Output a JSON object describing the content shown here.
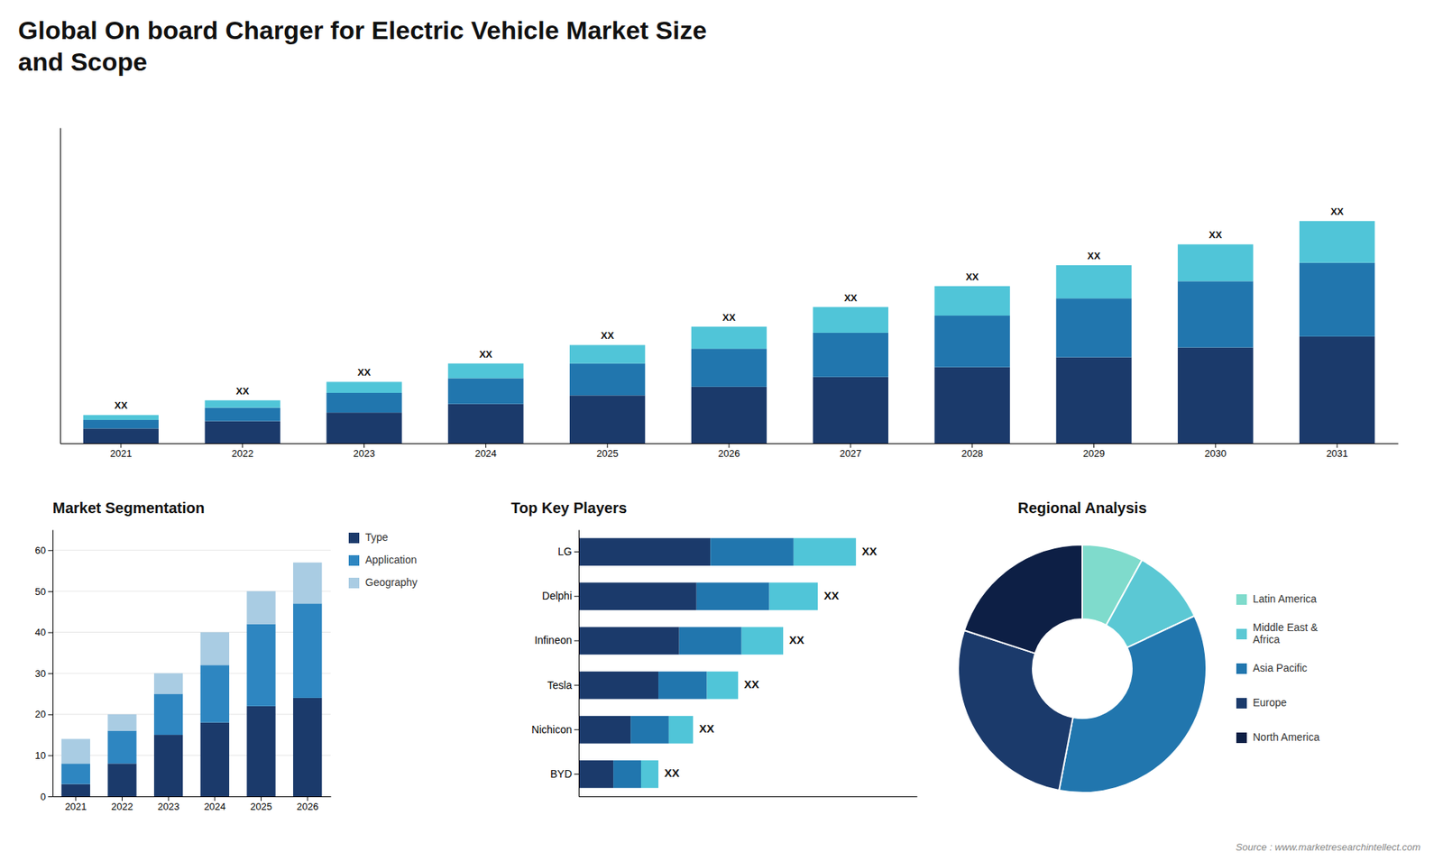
{
  "chart_data": [
    {
      "type": "bar",
      "title": "Global On board Charger for Electric Vehicle Market Size\nand Scope",
      "categories": [
        "2021",
        "2022",
        "2023",
        "2024",
        "2025",
        "2026",
        "2027",
        "2028",
        "2029",
        "2030",
        "2031"
      ],
      "series": [
        {
          "color": "#1b3a6b",
          "values": [
            1.2,
            1.8,
            2.5,
            3.2,
            3.9,
            4.6,
            5.4,
            6.2,
            7.0,
            7.8,
            8.7
          ]
        },
        {
          "color": "#2176ae",
          "values": [
            0.7,
            1.1,
            1.6,
            2.1,
            2.6,
            3.1,
            3.6,
            4.2,
            4.8,
            5.4,
            6.0
          ]
        },
        {
          "color": "#50c5d8",
          "values": [
            0.4,
            0.6,
            0.9,
            1.2,
            1.5,
            1.8,
            2.1,
            2.4,
            2.7,
            3.0,
            3.4
          ]
        }
      ],
      "stacked": true,
      "ylim": [
        0,
        25.702
      ],
      "tick_labels": "x",
      "grid": false,
      "annotations": [
        {
          "category": "2021",
          "text": "XX"
        },
        {
          "category": "2022",
          "text": "XX"
        },
        {
          "category": "2023",
          "text": "XX"
        },
        {
          "category": "2024",
          "text": "XX"
        },
        {
          "category": "2025",
          "text": "XX"
        },
        {
          "category": "2026",
          "text": "XX"
        },
        {
          "category": "2027",
          "text": "XX"
        },
        {
          "category": "2028",
          "text": "XX"
        },
        {
          "category": "2029",
          "text": "XX"
        },
        {
          "category": "2030",
          "text": "XX"
        },
        {
          "category": "2031",
          "text": "XX"
        },
        {
          "text": "Source : www.marketresearchintellect.com"
        }
      ]
    },
    {
      "type": "bar",
      "title": "Market Segmentation",
      "categories": [
        "2021",
        "2022",
        "2023",
        "2024",
        "2025",
        "2026"
      ],
      "series": [
        {
          "name": "Type",
          "color": "#1b3a6b",
          "values": [
            3,
            8,
            15,
            18,
            22,
            24
          ]
        },
        {
          "name": "Application",
          "color": "#2e86c1",
          "values": [
            5,
            8,
            10,
            14,
            20,
            23
          ]
        },
        {
          "name": "Geography",
          "color": "#a9cce3",
          "values": [
            6,
            4,
            5,
            8,
            8,
            10
          ]
        }
      ],
      "stacked": true,
      "ylim": [
        0,
        65
      ],
      "yticks": [
        0,
        10,
        20,
        30,
        40,
        50,
        60
      ],
      "grid": true,
      "legend": "right"
    },
    {
      "type": "bar",
      "orientation": "horizontal",
      "title": "Top Key Players",
      "categories": [
        "LG",
        "Delphi",
        "Infineon",
        "Tesla",
        "Nichicon",
        "BYD"
      ],
      "series": [
        {
          "color": "#1b3a6b",
          "values": [
            38,
            34,
            29,
            23,
            15,
            10
          ]
        },
        {
          "color": "#2176ae",
          "values": [
            24,
            21,
            18,
            14,
            11,
            8
          ]
        },
        {
          "color": "#50c5d8",
          "values": [
            18,
            14,
            12,
            9,
            7,
            5
          ]
        }
      ],
      "stacked": true,
      "xlim": [
        0,
        97.6
      ],
      "tick_labels": "y",
      "grid": false,
      "annotations": [
        {
          "category": "LG",
          "text": "XX"
        },
        {
          "category": "Delphi",
          "text": "XX"
        },
        {
          "category": "Infineon",
          "text": "XX"
        },
        {
          "category": "Tesla",
          "text": "XX"
        },
        {
          "category": "Nichicon",
          "text": "XX"
        },
        {
          "category": "BYD",
          "text": "XX"
        }
      ]
    },
    {
      "type": "pie",
      "title": "Regional Analysis",
      "categories": [
        "Latin America",
        "Middle East &\nAfrica",
        "Asia Pacific",
        "Europe",
        "North America"
      ],
      "values": [
        8,
        10,
        35,
        27,
        20
      ],
      "colors": [
        "#7fdbcc",
        "#5bc8d4",
        "#2176ae",
        "#1b3a6b",
        "#0d1f45"
      ],
      "legend": "right"
    }
  ]
}
